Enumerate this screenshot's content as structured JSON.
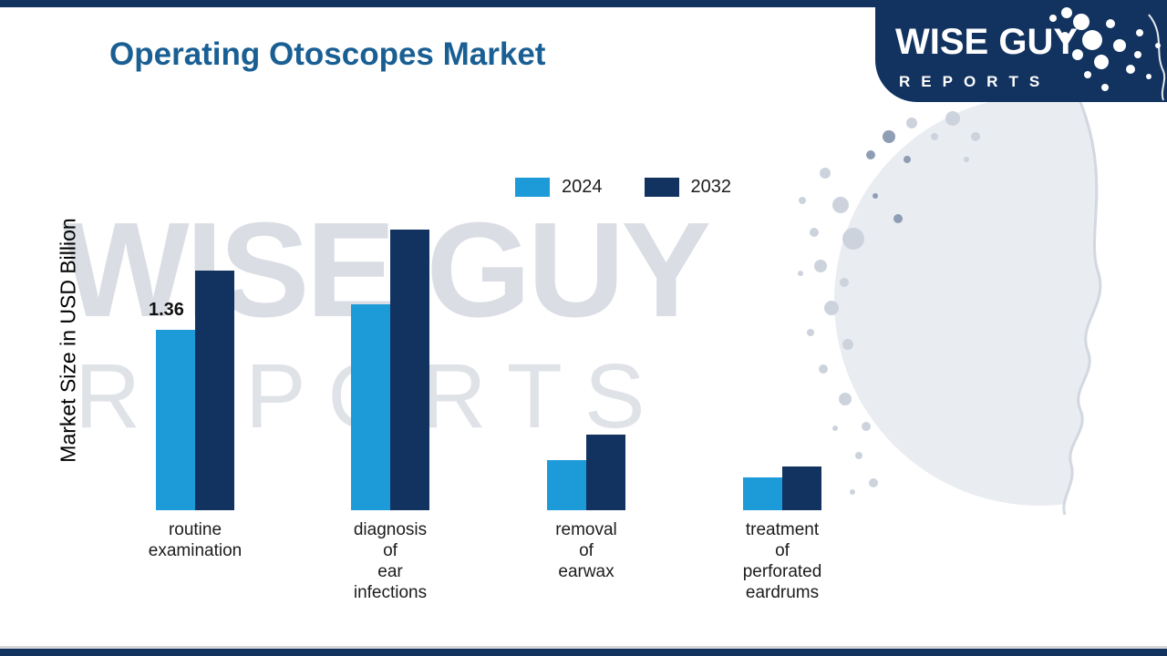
{
  "page": {
    "title": "Operating Otoscopes Market"
  },
  "brand": {
    "logo_line1": "WISE GUY",
    "logo_line2": "REPORTS",
    "watermark_line1": "WISE GUY",
    "watermark_line2": "REPORTS"
  },
  "colors": {
    "accent_blue": "#1d9bd9",
    "navy": "#12325f",
    "title_blue": "#1a5f93"
  },
  "chart_data": {
    "type": "bar",
    "title": "Operating Otoscopes Market",
    "xlabel": "",
    "ylabel": "Market Size in USD Billion",
    "ylim": [
      0,
      2.2
    ],
    "grid": false,
    "legend_position": "top",
    "categories": [
      "routine examination",
      "diagnosis of ear infections",
      "removal of earwax",
      "treatment of perforated eardrums"
    ],
    "category_lines": [
      [
        "routine",
        "examination"
      ],
      [
        "diagnosis",
        "of",
        "ear",
        "infections"
      ],
      [
        "removal",
        "of",
        "earwax"
      ],
      [
        "treatment",
        "of",
        "perforated",
        "eardrums"
      ]
    ],
    "series": [
      {
        "name": "2024",
        "color": "#1d9bd9",
        "values": [
          1.36,
          1.55,
          0.38,
          0.25
        ]
      },
      {
        "name": "2032",
        "color": "#12325f",
        "values": [
          1.81,
          2.12,
          0.57,
          0.33
        ]
      }
    ],
    "bar_labels": [
      {
        "series": "2024",
        "category_index": 0,
        "text": "1.36"
      }
    ]
  }
}
